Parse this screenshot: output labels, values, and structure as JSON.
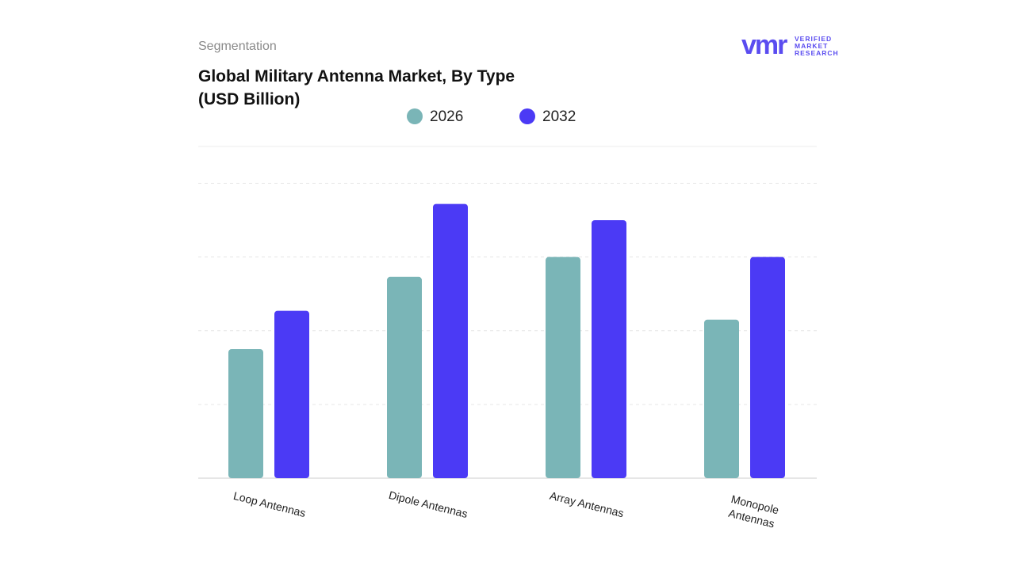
{
  "chart_data": {
    "type": "bar",
    "subtitle": "Segmentation",
    "title": "Global Military Antenna Market, By Type (USD Billion)",
    "brand": {
      "mark": "vmr",
      "lines": [
        "VERIFIED",
        "MARKET",
        "RESEARCH"
      ]
    },
    "categories": [
      "Loop Antennas",
      "Dipole Antennas",
      "Array Antennas",
      "Monopole Antennas"
    ],
    "series": [
      {
        "name": "2026",
        "color": "#7ab5b7",
        "values": [
          1.75,
          2.73,
          3.0,
          2.15
        ]
      },
      {
        "name": "2032",
        "color": "#4b3af5",
        "values": [
          2.27,
          3.72,
          3.5,
          3.0
        ]
      }
    ],
    "ylim": [
      0,
      4.5
    ],
    "yticks": [
      0,
      1,
      2,
      3,
      4
    ],
    "ytick_labels": false,
    "grid": true
  }
}
